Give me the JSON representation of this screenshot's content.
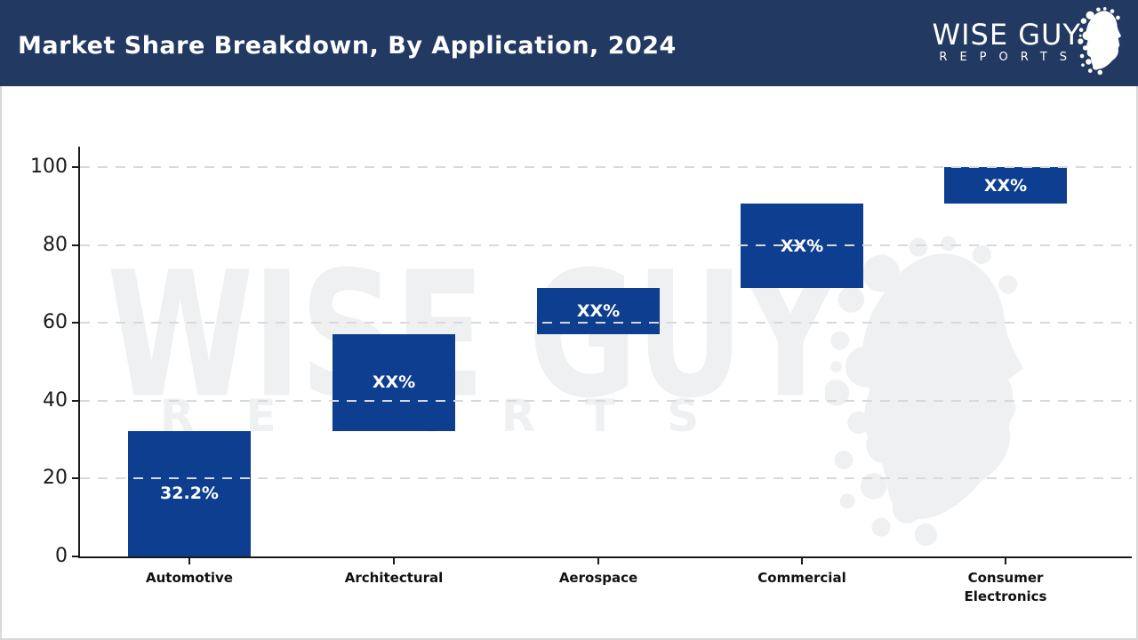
{
  "header": {
    "title": "Market Share Breakdown, By Application, 2024",
    "logo": {
      "line1": "WISE GUY",
      "line2": "REPORTS"
    }
  },
  "watermark": {
    "line1": "WISE GUY",
    "line2": "REPORTS"
  },
  "colors": {
    "header_bg": "#223962",
    "bar": "#0d3e8f",
    "grid": "#d8d9db",
    "axis": "#1a1a1a",
    "bar_label": "#ffffff",
    "watermark": "#eff0f2"
  },
  "chart_data": {
    "type": "bar",
    "subtype": "waterfall",
    "title": "Market Share Breakdown, By Application, 2024",
    "categories": [
      "Automotive",
      "Architectural",
      "Aerospace",
      "Commercial",
      "Consumer Electronics"
    ],
    "series": [
      {
        "name": "Market Share %",
        "segments": [
          {
            "category": "Automotive",
            "start": 0,
            "end": 32.2,
            "label": "32.2%"
          },
          {
            "category": "Architectural",
            "start": 32.2,
            "end": 57.1,
            "label": "XX%"
          },
          {
            "category": "Aerospace",
            "start": 57.1,
            "end": 68.9,
            "label": "XX%"
          },
          {
            "category": "Commercial",
            "start": 68.9,
            "end": 90.6,
            "label": "XX%"
          },
          {
            "category": "Consumer Electronics",
            "start": 90.6,
            "end": 100,
            "label": "XX%"
          }
        ]
      }
    ],
    "xlabel": "",
    "ylabel": "",
    "ylim": [
      0,
      100
    ],
    "yticks": [
      0,
      20,
      40,
      60,
      80,
      100
    ],
    "grid": "horizontal-dashed-above-bars",
    "legend": "none"
  }
}
